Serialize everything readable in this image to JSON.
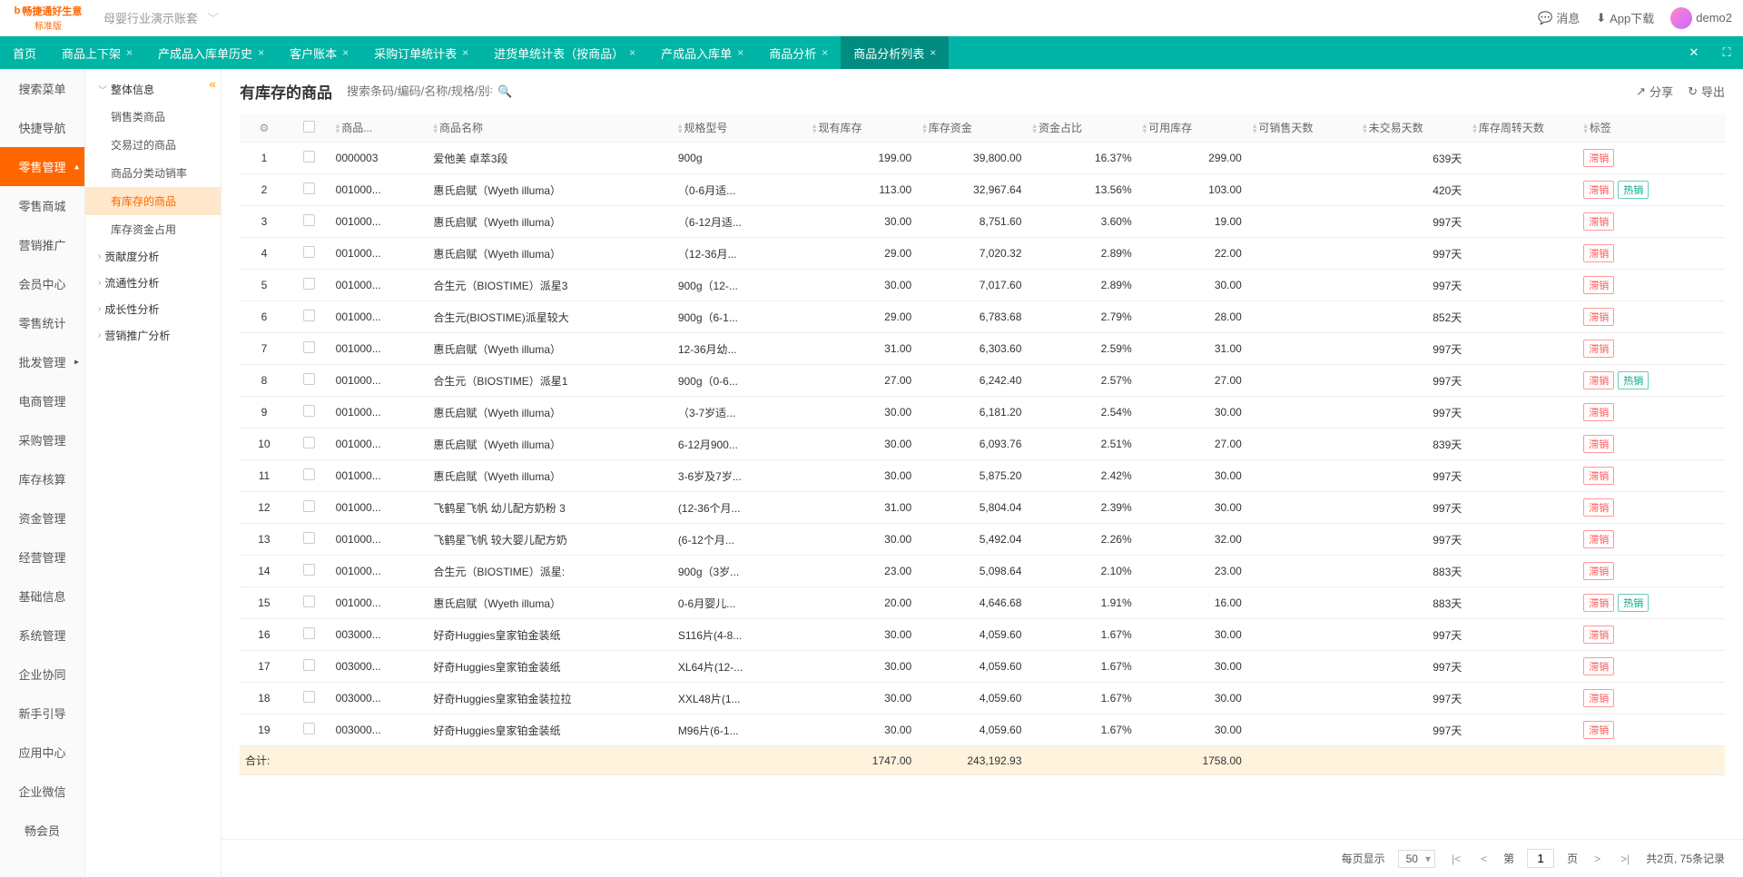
{
  "header": {
    "logo_main": "畅捷通好生意",
    "logo_sub": "标准版",
    "account": "母婴行业演示账套",
    "msg": "消息",
    "app_download": "App下载",
    "user": "demo2"
  },
  "tabs": [
    {
      "label": "首页",
      "closable": false
    },
    {
      "label": "商品上下架",
      "closable": true
    },
    {
      "label": "产成品入库单历史",
      "closable": true
    },
    {
      "label": "客户账本",
      "closable": true
    },
    {
      "label": "采购订单统计表",
      "closable": true
    },
    {
      "label": "进货单统计表（按商品）",
      "closable": true
    },
    {
      "label": "产成品入库单",
      "closable": true
    },
    {
      "label": "商品分析",
      "closable": true
    },
    {
      "label": "商品分析列表",
      "closable": true,
      "active": true
    }
  ],
  "sidebar": [
    {
      "label": "搜索菜单"
    },
    {
      "label": "快捷导航"
    },
    {
      "label": "零售管理",
      "active": true,
      "expand": true
    },
    {
      "label": "零售商城"
    },
    {
      "label": "营销推广"
    },
    {
      "label": "会员中心"
    },
    {
      "label": "零售统计"
    },
    {
      "label": "批发管理",
      "expand": true
    },
    {
      "label": "电商管理"
    },
    {
      "label": "采购管理"
    },
    {
      "label": "库存核算"
    },
    {
      "label": "资金管理"
    },
    {
      "label": "经营管理"
    },
    {
      "label": "基础信息"
    },
    {
      "label": "系统管理"
    },
    {
      "label": "企业协同"
    },
    {
      "label": "新手引导"
    },
    {
      "label": "应用中心"
    },
    {
      "label": "企业微信"
    },
    {
      "label": "畅会员"
    }
  ],
  "subsidebar": {
    "group_overall": "整体信息",
    "overall_children": [
      "销售类商品",
      "交易过的商品",
      "商品分类动销率",
      "有库存的商品",
      "库存资金占用"
    ],
    "overall_active": "有库存的商品",
    "other_groups": [
      "贡献度分析",
      "流通性分析",
      "成长性分析",
      "营销推广分析"
    ]
  },
  "main": {
    "title": "有库存的商品",
    "search_placeholder": "搜索条码/编码/名称/规格/别名",
    "share": "分享",
    "export": "导出"
  },
  "columns": [
    "",
    "",
    "商品...",
    "商品名称",
    "规格型号",
    "现有库存",
    "库存资金",
    "资金占比",
    "可用库存",
    "可销售天数",
    "未交易天数",
    "库存周转天数",
    "标签"
  ],
  "rows": [
    {
      "idx": 1,
      "code": "0000003",
      "name": "爱他美 卓萃3段",
      "spec": "900g",
      "stock": "199.00",
      "fund": "39,800.00",
      "ratio": "16.37%",
      "avail": "299.00",
      "sdays": "",
      "nodays": "639天",
      "turn": "",
      "tags": [
        "滞销"
      ]
    },
    {
      "idx": 2,
      "code": "001000...",
      "name": "惠氏启赋（Wyeth illuma）",
      "spec": "（0-6月适...",
      "stock": "113.00",
      "fund": "32,967.64",
      "ratio": "13.56%",
      "avail": "103.00",
      "sdays": "",
      "nodays": "420天",
      "turn": "",
      "tags": [
        "滞销",
        "热销"
      ]
    },
    {
      "idx": 3,
      "code": "001000...",
      "name": "惠氏启赋（Wyeth illuma）",
      "spec": "（6-12月适...",
      "stock": "30.00",
      "fund": "8,751.60",
      "ratio": "3.60%",
      "avail": "19.00",
      "sdays": "",
      "nodays": "997天",
      "turn": "",
      "tags": [
        "滞销"
      ]
    },
    {
      "idx": 4,
      "code": "001000...",
      "name": "惠氏启赋（Wyeth illuma）",
      "spec": "（12-36月...",
      "stock": "29.00",
      "fund": "7,020.32",
      "ratio": "2.89%",
      "avail": "22.00",
      "sdays": "",
      "nodays": "997天",
      "turn": "",
      "tags": [
        "滞销"
      ]
    },
    {
      "idx": 5,
      "code": "001000...",
      "name": "合生元（BIOSTIME）派星3",
      "spec": "900g（12-...",
      "stock": "30.00",
      "fund": "7,017.60",
      "ratio": "2.89%",
      "avail": "30.00",
      "sdays": "",
      "nodays": "997天",
      "turn": "",
      "tags": [
        "滞销"
      ]
    },
    {
      "idx": 6,
      "code": "001000...",
      "name": "合生元(BIOSTIME)派星较大",
      "spec": "900g（6-1...",
      "stock": "29.00",
      "fund": "6,783.68",
      "ratio": "2.79%",
      "avail": "28.00",
      "sdays": "",
      "nodays": "852天",
      "turn": "",
      "tags": [
        "滞销"
      ]
    },
    {
      "idx": 7,
      "code": "001000...",
      "name": "惠氏启赋（Wyeth illuma）",
      "spec": "12-36月幼...",
      "stock": "31.00",
      "fund": "6,303.60",
      "ratio": "2.59%",
      "avail": "31.00",
      "sdays": "",
      "nodays": "997天",
      "turn": "",
      "tags": [
        "滞销"
      ]
    },
    {
      "idx": 8,
      "code": "001000...",
      "name": "合生元（BIOSTIME）派星1",
      "spec": "900g（0-6...",
      "stock": "27.00",
      "fund": "6,242.40",
      "ratio": "2.57%",
      "avail": "27.00",
      "sdays": "",
      "nodays": "997天",
      "turn": "",
      "tags": [
        "滞销",
        "热销"
      ]
    },
    {
      "idx": 9,
      "code": "001000...",
      "name": "惠氏启赋（Wyeth illuma）",
      "spec": "（3-7岁适...",
      "stock": "30.00",
      "fund": "6,181.20",
      "ratio": "2.54%",
      "avail": "30.00",
      "sdays": "",
      "nodays": "997天",
      "turn": "",
      "tags": [
        "滞销"
      ]
    },
    {
      "idx": 10,
      "code": "001000...",
      "name": "惠氏启赋（Wyeth illuma）",
      "spec": "6-12月900...",
      "stock": "30.00",
      "fund": "6,093.76",
      "ratio": "2.51%",
      "avail": "27.00",
      "sdays": "",
      "nodays": "839天",
      "turn": "",
      "tags": [
        "滞销"
      ]
    },
    {
      "idx": 11,
      "code": "001000...",
      "name": "惠氏启赋（Wyeth illuma）",
      "spec": "3-6岁及7岁...",
      "stock": "30.00",
      "fund": "5,875.20",
      "ratio": "2.42%",
      "avail": "30.00",
      "sdays": "",
      "nodays": "997天",
      "turn": "",
      "tags": [
        "滞销"
      ]
    },
    {
      "idx": 12,
      "code": "001000...",
      "name": "飞鹤星飞帆 幼儿配方奶粉 3",
      "spec": "(12-36个月...",
      "stock": "31.00",
      "fund": "5,804.04",
      "ratio": "2.39%",
      "avail": "30.00",
      "sdays": "",
      "nodays": "997天",
      "turn": "",
      "tags": [
        "滞销"
      ]
    },
    {
      "idx": 13,
      "code": "001000...",
      "name": "飞鹤星飞帆 较大婴儿配方奶",
      "spec": "(6-12个月...",
      "stock": "30.00",
      "fund": "5,492.04",
      "ratio": "2.26%",
      "avail": "32.00",
      "sdays": "",
      "nodays": "997天",
      "turn": "",
      "tags": [
        "滞销"
      ]
    },
    {
      "idx": 14,
      "code": "001000...",
      "name": "合生元（BIOSTIME）派星:",
      "spec": "900g（3岁...",
      "stock": "23.00",
      "fund": "5,098.64",
      "ratio": "2.10%",
      "avail": "23.00",
      "sdays": "",
      "nodays": "883天",
      "turn": "",
      "tags": [
        "滞销"
      ]
    },
    {
      "idx": 15,
      "code": "001000...",
      "name": "惠氏启赋（Wyeth illuma）",
      "spec": "0-6月婴儿...",
      "stock": "20.00",
      "fund": "4,646.68",
      "ratio": "1.91%",
      "avail": "16.00",
      "sdays": "",
      "nodays": "883天",
      "turn": "",
      "tags": [
        "滞销",
        "热销"
      ]
    },
    {
      "idx": 16,
      "code": "003000...",
      "name": "好奇Huggies皇家铂金装纸",
      "spec": "S116片(4-8...",
      "stock": "30.00",
      "fund": "4,059.60",
      "ratio": "1.67%",
      "avail": "30.00",
      "sdays": "",
      "nodays": "997天",
      "turn": "",
      "tags": [
        "滞销"
      ]
    },
    {
      "idx": 17,
      "code": "003000...",
      "name": "好奇Huggies皇家铂金装纸",
      "spec": "XL64片(12-...",
      "stock": "30.00",
      "fund": "4,059.60",
      "ratio": "1.67%",
      "avail": "30.00",
      "sdays": "",
      "nodays": "997天",
      "turn": "",
      "tags": [
        "滞销"
      ]
    },
    {
      "idx": 18,
      "code": "003000...",
      "name": "好奇Huggies皇家铂金装拉拉",
      "spec": "XXL48片(1...",
      "stock": "30.00",
      "fund": "4,059.60",
      "ratio": "1.67%",
      "avail": "30.00",
      "sdays": "",
      "nodays": "997天",
      "turn": "",
      "tags": [
        "滞销"
      ]
    },
    {
      "idx": 19,
      "code": "003000...",
      "name": "好奇Huggies皇家铂金装纸",
      "spec": "M96片(6-1...",
      "stock": "30.00",
      "fund": "4,059.60",
      "ratio": "1.67%",
      "avail": "30.00",
      "sdays": "",
      "nodays": "997天",
      "turn": "",
      "tags": [
        "滞销"
      ]
    }
  ],
  "totals": {
    "label": "合计:",
    "stock": "1747.00",
    "fund": "243,192.93",
    "avail": "1758.00"
  },
  "footer": {
    "per_page_label": "每页显示",
    "page_size": "50",
    "page_label_prefix": "第",
    "page_current": "1",
    "page_label_suffix": "页",
    "summary": "共2页, 75条记录"
  }
}
